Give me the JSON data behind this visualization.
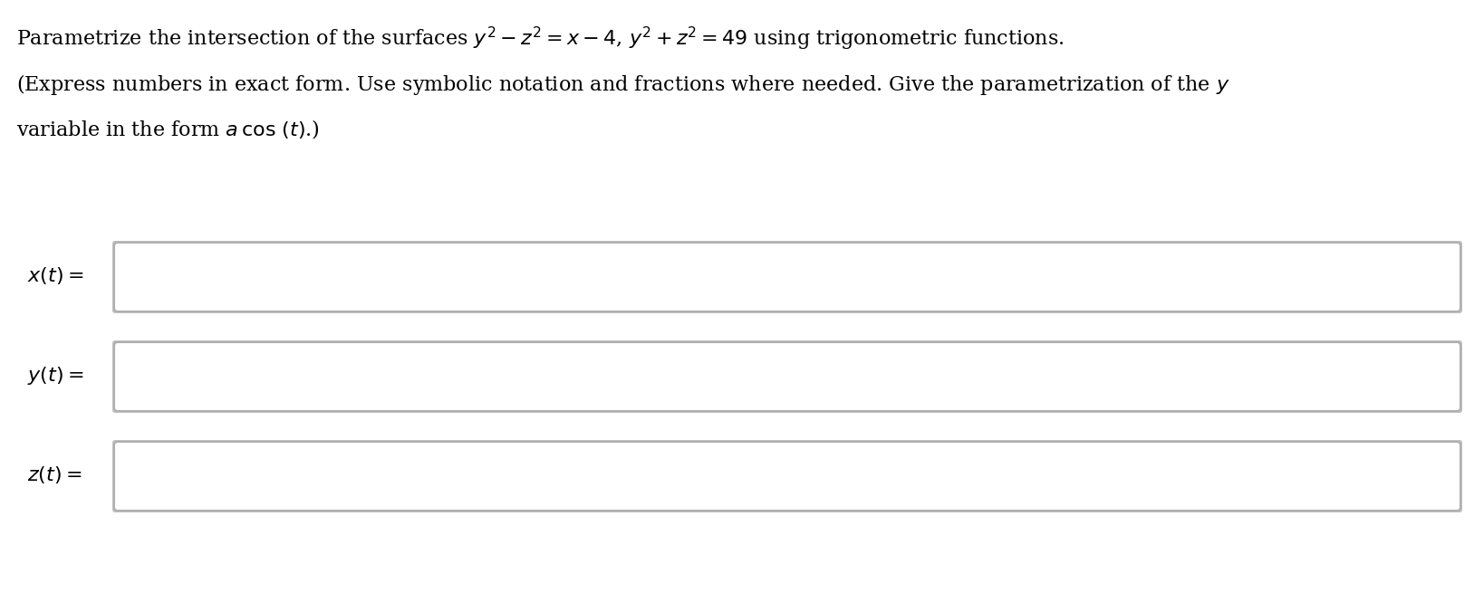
{
  "background_color": "#ffffff",
  "title_line1": "Parametrize the intersection of the surfaces $y^2 - z^2 = x - 4$, $y^2 + z^2 = 49$ using trigonometric functions.",
  "title_line2": "(Express numbers in exact form. Use symbolic notation and fractions where needed. Give the parametrization of the $y$",
  "title_line3": "variable in the form $a\\,\\cos\\,(t)$.)",
  "labels": [
    "$x(t) =$",
    "$y(t) =$",
    "$z(t) =$"
  ],
  "box_facecolor": "#ffffff",
  "box_edgecolor": "#b0b0b0",
  "text_color": "#000000",
  "font_size_title": 16,
  "font_size_labels": 16
}
